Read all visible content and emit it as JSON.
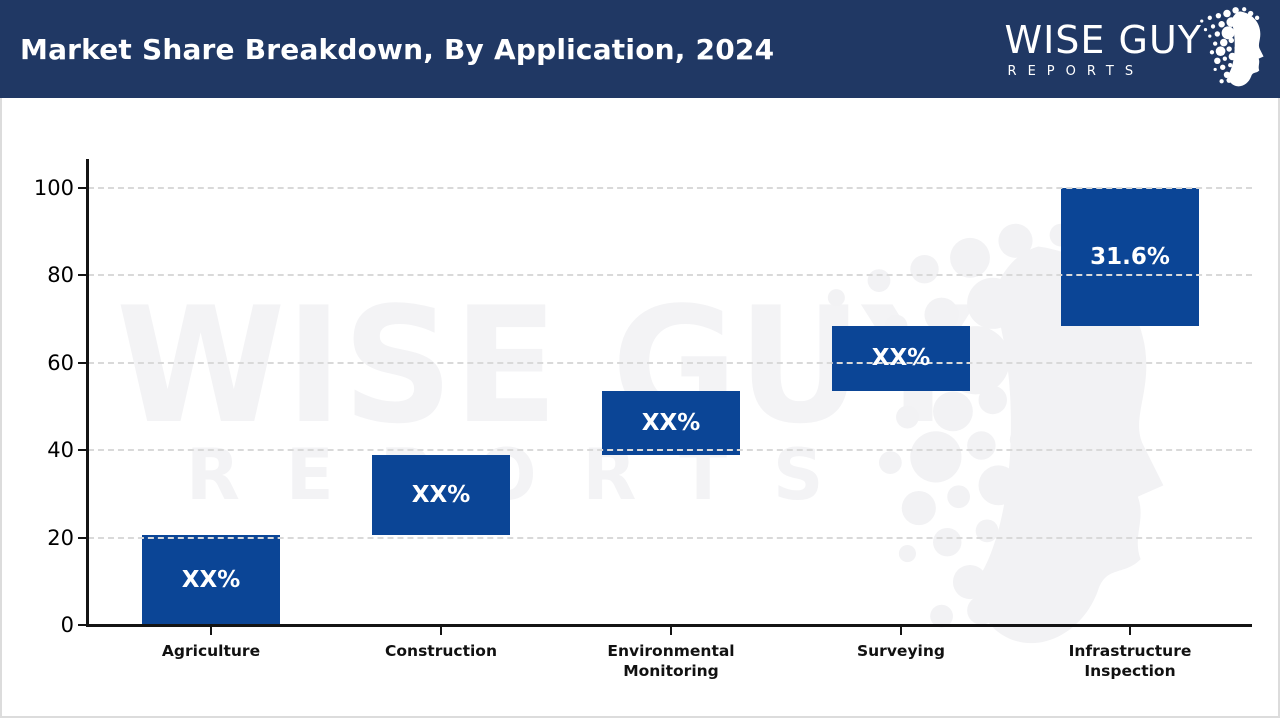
{
  "header": {
    "title": "Market Share Breakdown, By Application, 2024",
    "logo_name": "WISE GUY",
    "logo_sub": "REPORTS"
  },
  "watermark": {
    "line1": "WISE GUY",
    "line2": "REPORTS"
  },
  "chart_data": {
    "type": "bar",
    "subtype": "waterfall",
    "title": "Market Share Breakdown, By Application, 2024",
    "categories": [
      "Agriculture",
      "Construction",
      "Environmental Monitoring",
      "Surveying",
      "Infrastructure Inspection"
    ],
    "segments": [
      {
        "category": "Agriculture",
        "start": 0,
        "end": 20.6,
        "label": "XX%"
      },
      {
        "category": "Construction",
        "start": 20.6,
        "end": 38.8,
        "label": "XX%"
      },
      {
        "category": "Environmental Monitoring",
        "start": 38.8,
        "end": 53.6,
        "label": "XX%"
      },
      {
        "category": "Surveying",
        "start": 53.6,
        "end": 68.4,
        "label": "XX%"
      },
      {
        "category": "Infrastructure Inspection",
        "start": 68.4,
        "end": 100,
        "label": "31.6%"
      }
    ],
    "yticks": [
      0,
      20,
      40,
      60,
      80,
      100
    ],
    "ylim": [
      0,
      106
    ],
    "xlabel": "",
    "ylabel": "",
    "grid": "horizontal dashed, drawn over bars",
    "legend": "none",
    "bar_color": "#0B4596",
    "value_label_color": "#FFFFFF"
  },
  "colors": {
    "header_bg": "#203864",
    "bar_blue": "#0B4596",
    "gridline": "#D9D9D9",
    "axis": "#141414",
    "watermark": "#F2F2F4",
    "page_bg": "#FFFFFF",
    "card_border": "#DCDCDC"
  }
}
